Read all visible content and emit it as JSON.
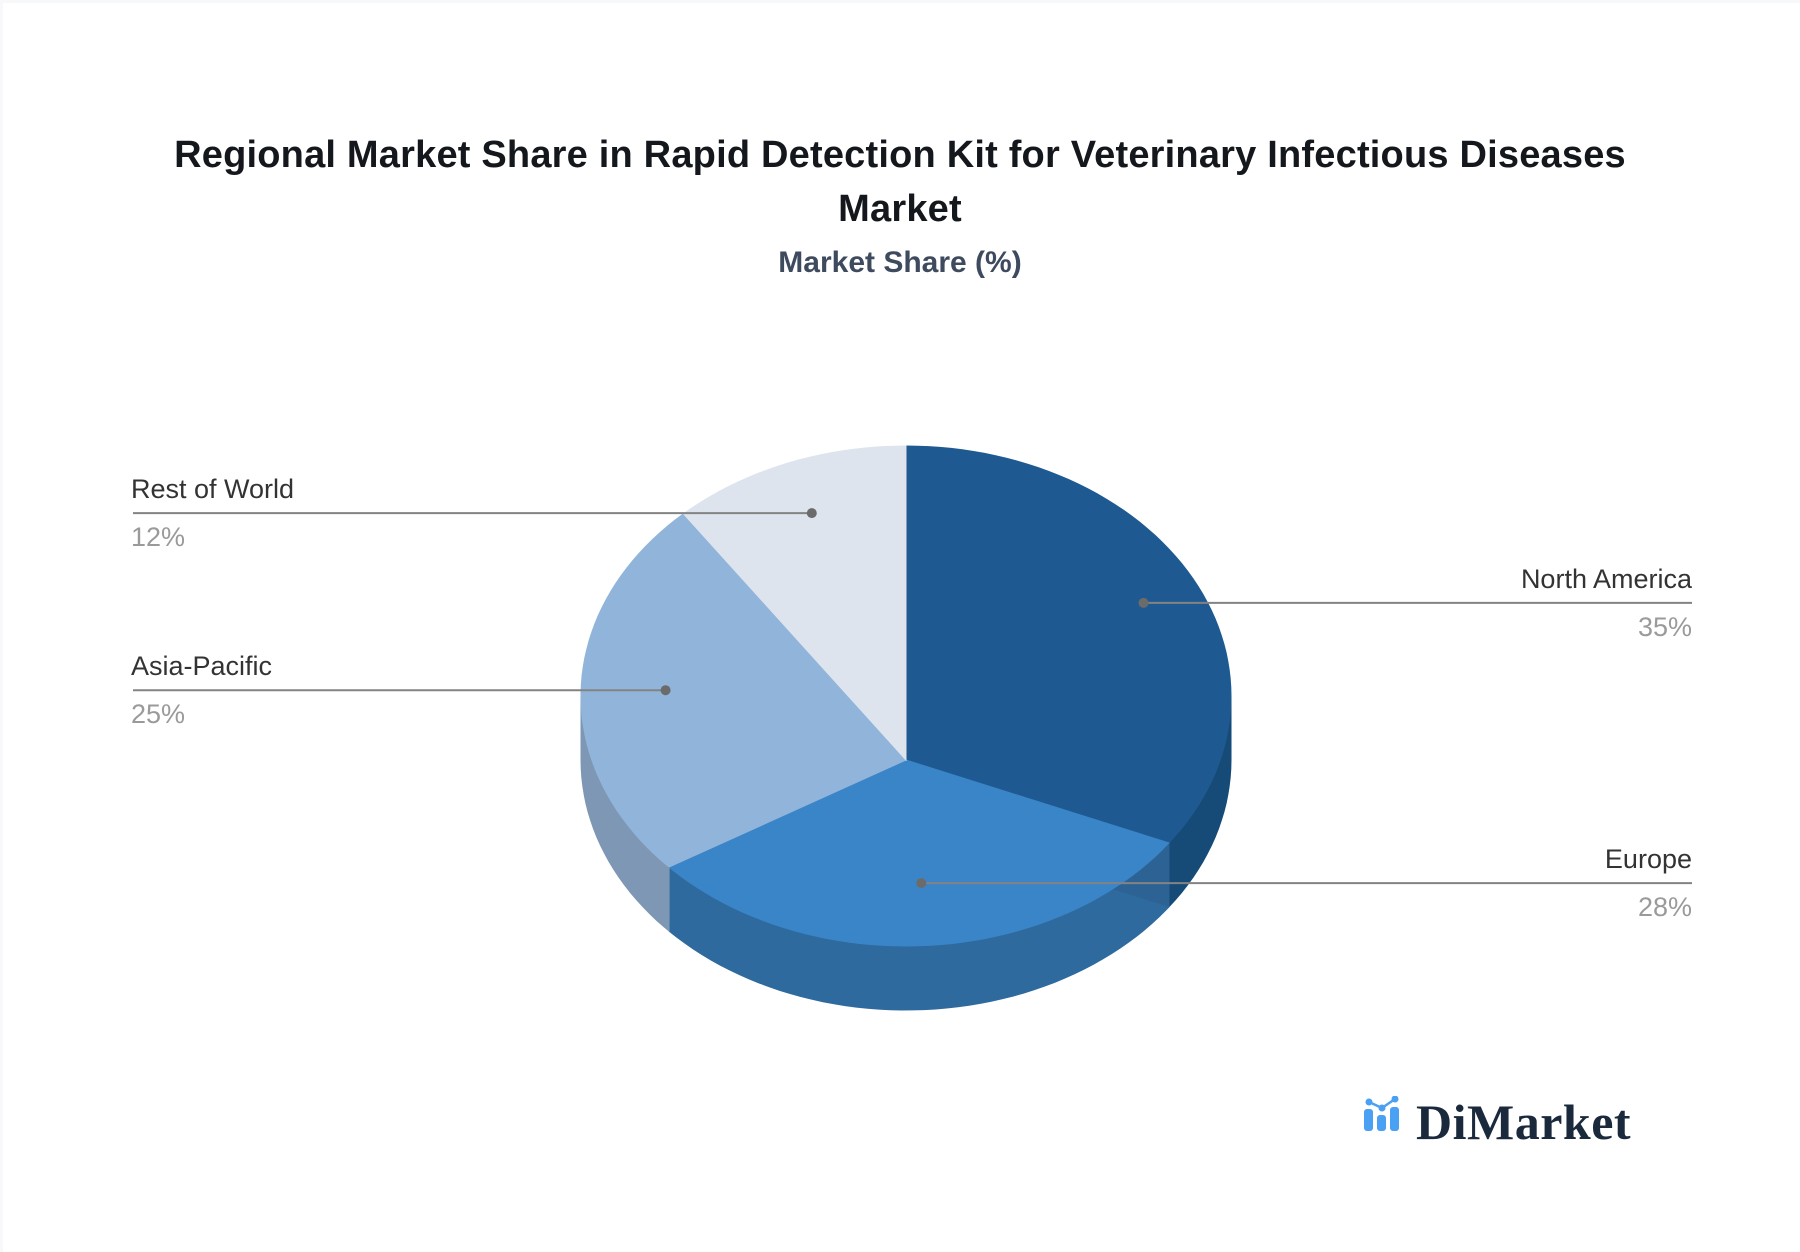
{
  "title": {
    "line1": "Regional Market Share in Rapid Detection Kit for Veterinary Infectious Diseases",
    "line2": "Market"
  },
  "subtitle": "Market Share (%)",
  "brand": {
    "name": "DiMarket"
  },
  "chart_data": {
    "type": "pie",
    "title": "Regional Market Share in Rapid Detection Kit for Veterinary Infectious Diseases Market",
    "subtitle": "Market Share (%)",
    "unit": "%",
    "style": "pseudo-3d",
    "start_angle_deg": 0,
    "direction": "clockwise",
    "slices": [
      {
        "label": "North America",
        "value": 35,
        "pct_text": "35%",
        "color": "#1e5a91",
        "side_color": "#164a77",
        "label_side": "right"
      },
      {
        "label": "Europe",
        "value": 28,
        "pct_text": "28%",
        "color": "#3a85c8",
        "side_color": "#2e6a9e",
        "wall_color": "#2c6394",
        "label_side": "right"
      },
      {
        "label": "Asia-Pacific",
        "value": 25,
        "pct_text": "25%",
        "color": "#91b4da",
        "side_color": "#7e97b5",
        "label_side": "left"
      },
      {
        "label": "Rest of World",
        "value": 12,
        "pct_text": "12%",
        "color": "#dde4ee",
        "label_side": "left"
      }
    ],
    "label_color": "#333333",
    "pct_color": "#9a9a9a",
    "leader_line_color": "#838383",
    "leader_dot_color": "#6b6b6b",
    "brand_icon_color": "#4aa0f2"
  }
}
